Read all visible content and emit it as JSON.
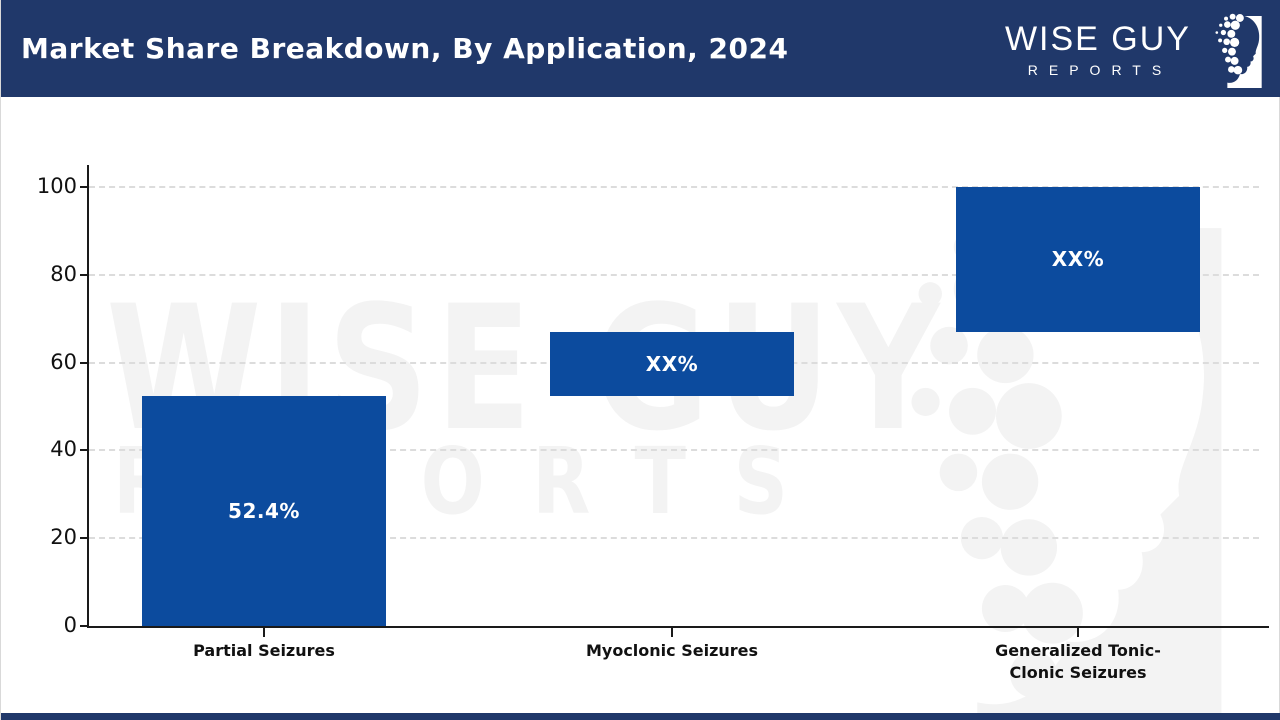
{
  "header": {
    "title": "Market Share Breakdown, By Application, 2024",
    "logo": {
      "line1": "WISE GUY",
      "line2": "REPORTS"
    }
  },
  "watermark": {
    "line1": "WISE GUY",
    "line2": "REPORTS"
  },
  "chart_data": {
    "type": "bar",
    "subtype": "waterfall",
    "title": "Market Share Breakdown, By Application, 2024",
    "categories": [
      "Partial Seizures",
      "Myoclonic Seizures",
      "Generalized Tonic-Clonic Seizures"
    ],
    "bases": [
      0,
      52.4,
      67
    ],
    "values": [
      52.4,
      14.6,
      33
    ],
    "bar_labels": [
      "52.4%",
      "XX%",
      "XX%"
    ],
    "yticks": [
      0,
      20,
      40,
      60,
      80,
      100
    ],
    "ylim": [
      0,
      105
    ],
    "xlabel": "",
    "ylabel": "",
    "grid": "dashed-horizontal",
    "bar_color": "#0c4b9e",
    "grid_color": "#dcdcdc",
    "axis_color": "#1a1a1a",
    "header_color": "#20386a",
    "label_color": "#ffffff"
  },
  "footer": {}
}
